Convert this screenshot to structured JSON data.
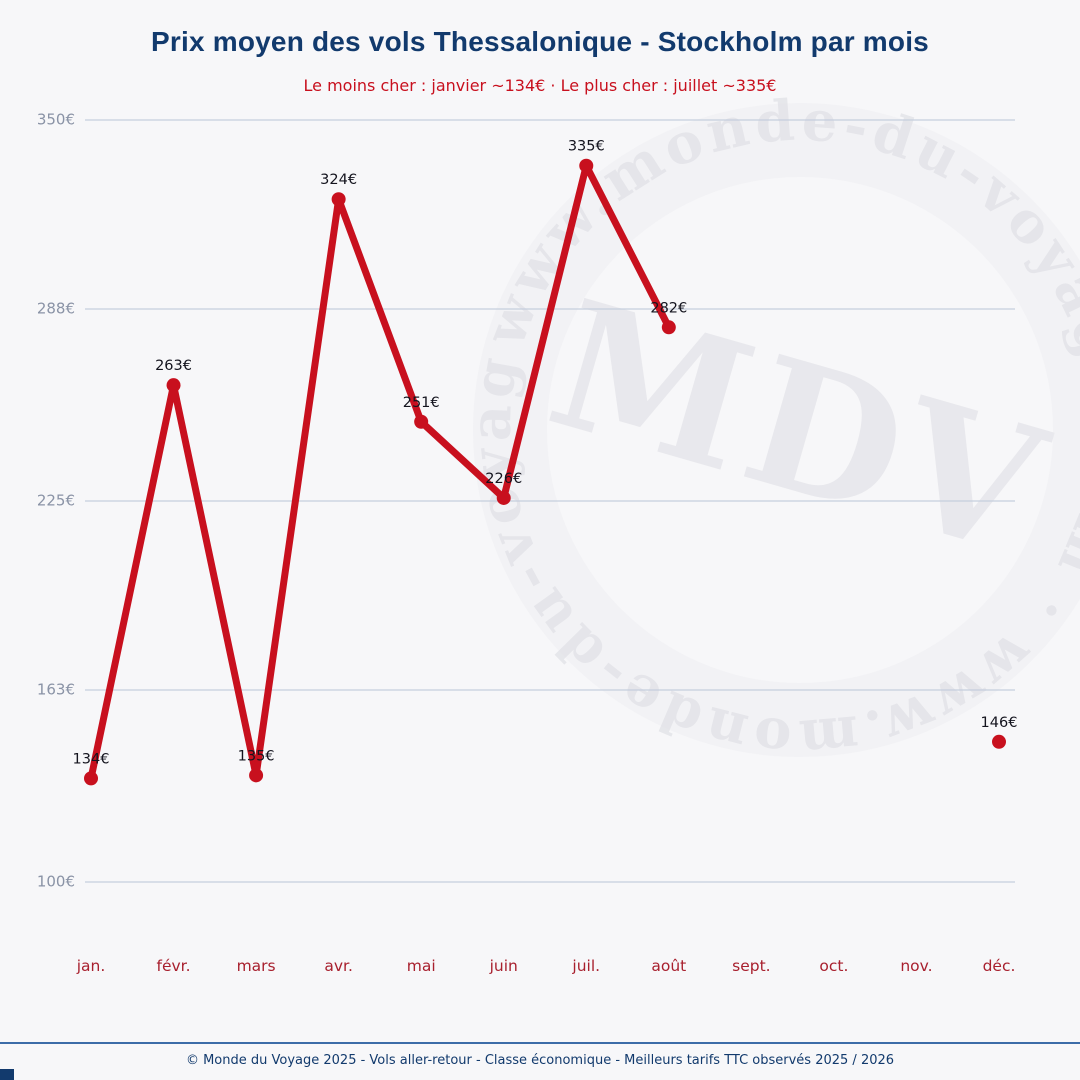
{
  "header": {
    "title": "Prix moyen des vols Thessalonique - Stockholm par mois",
    "subtitle": "Le moins cher : janvier ~134€ · Le plus cher : juillet ~335€"
  },
  "watermark": {
    "ring_text": "www.monde-du-voyage.com · www.monde-du-voyage.com ·",
    "center_text": "MDV"
  },
  "footer": {
    "text": "© Monde du Voyage 2025 - Vols aller-retour - Classe économique - Meilleurs tarifs TTC observés 2025 / 2026"
  },
  "chart_data": {
    "type": "line",
    "title": "Prix moyen des vols Thessalonique - Stockholm par mois",
    "categories": [
      "jan.",
      "févr.",
      "mars",
      "avr.",
      "mai",
      "juin",
      "juil.",
      "août",
      "sept.",
      "oct.",
      "nov.",
      "déc."
    ],
    "values": [
      134,
      263,
      135,
      324,
      251,
      226,
      335,
      282,
      null,
      null,
      null,
      146
    ],
    "unit": "€",
    "ylim": [
      100,
      350
    ],
    "yticks": [
      350,
      288,
      225,
      163,
      100
    ],
    "grid": true,
    "legend": "none",
    "line_color": "#c8101e",
    "grid_color": "#c5cedd",
    "ytick_color": "#8a93a6",
    "xtick_color": "#a8202e",
    "value_label_color": "#14141e"
  }
}
